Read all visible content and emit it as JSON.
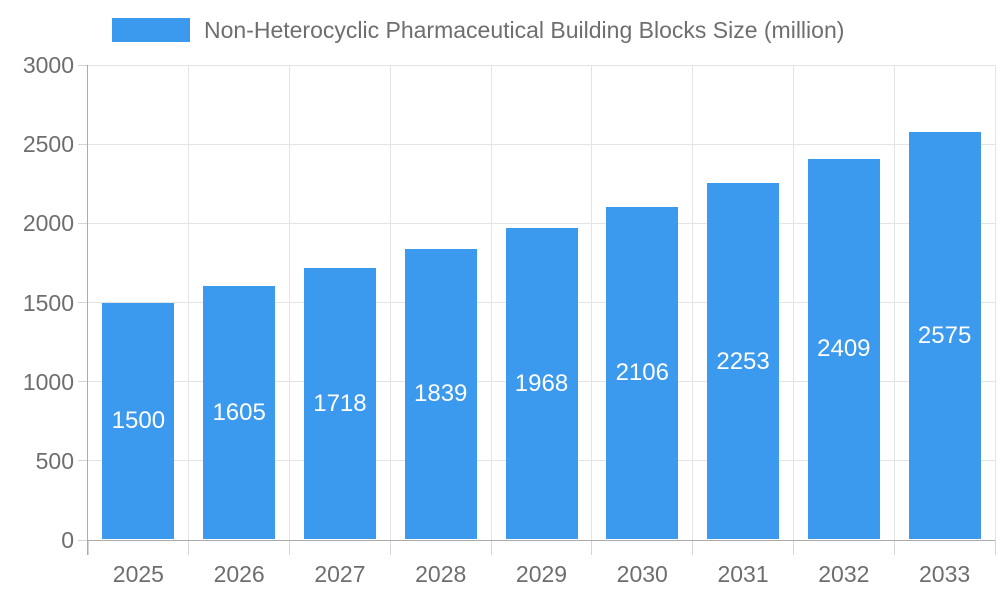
{
  "legend": {
    "label": "Non-Heterocyclic Pharmaceutical Building Blocks Size (million)"
  },
  "colors": {
    "bar": "#3b99ee",
    "bar_value_text": "#ffffff",
    "axis_text": "#6e6e6e",
    "grid": "#e4e4e4",
    "axis_line": "#ababab",
    "tick": "#d4d4d4",
    "background": "#ffffff"
  },
  "chart_data": {
    "type": "bar",
    "title": "Non-Heterocyclic Pharmaceutical Building Blocks Size (million)",
    "categories": [
      "2025",
      "2026",
      "2027",
      "2028",
      "2029",
      "2030",
      "2031",
      "2032",
      "2033"
    ],
    "values": [
      1500,
      1605,
      1718,
      1839,
      1968,
      2106,
      2253,
      2409,
      2575
    ],
    "xlabel": "",
    "ylabel": "",
    "ylim": [
      0,
      3000
    ],
    "ytick_step": 500,
    "yticks": [
      0,
      500,
      1000,
      1500,
      2000,
      2500,
      3000
    ],
    "grid": true,
    "legend_position": "top-left",
    "bar_value_labels": "inside-center"
  }
}
